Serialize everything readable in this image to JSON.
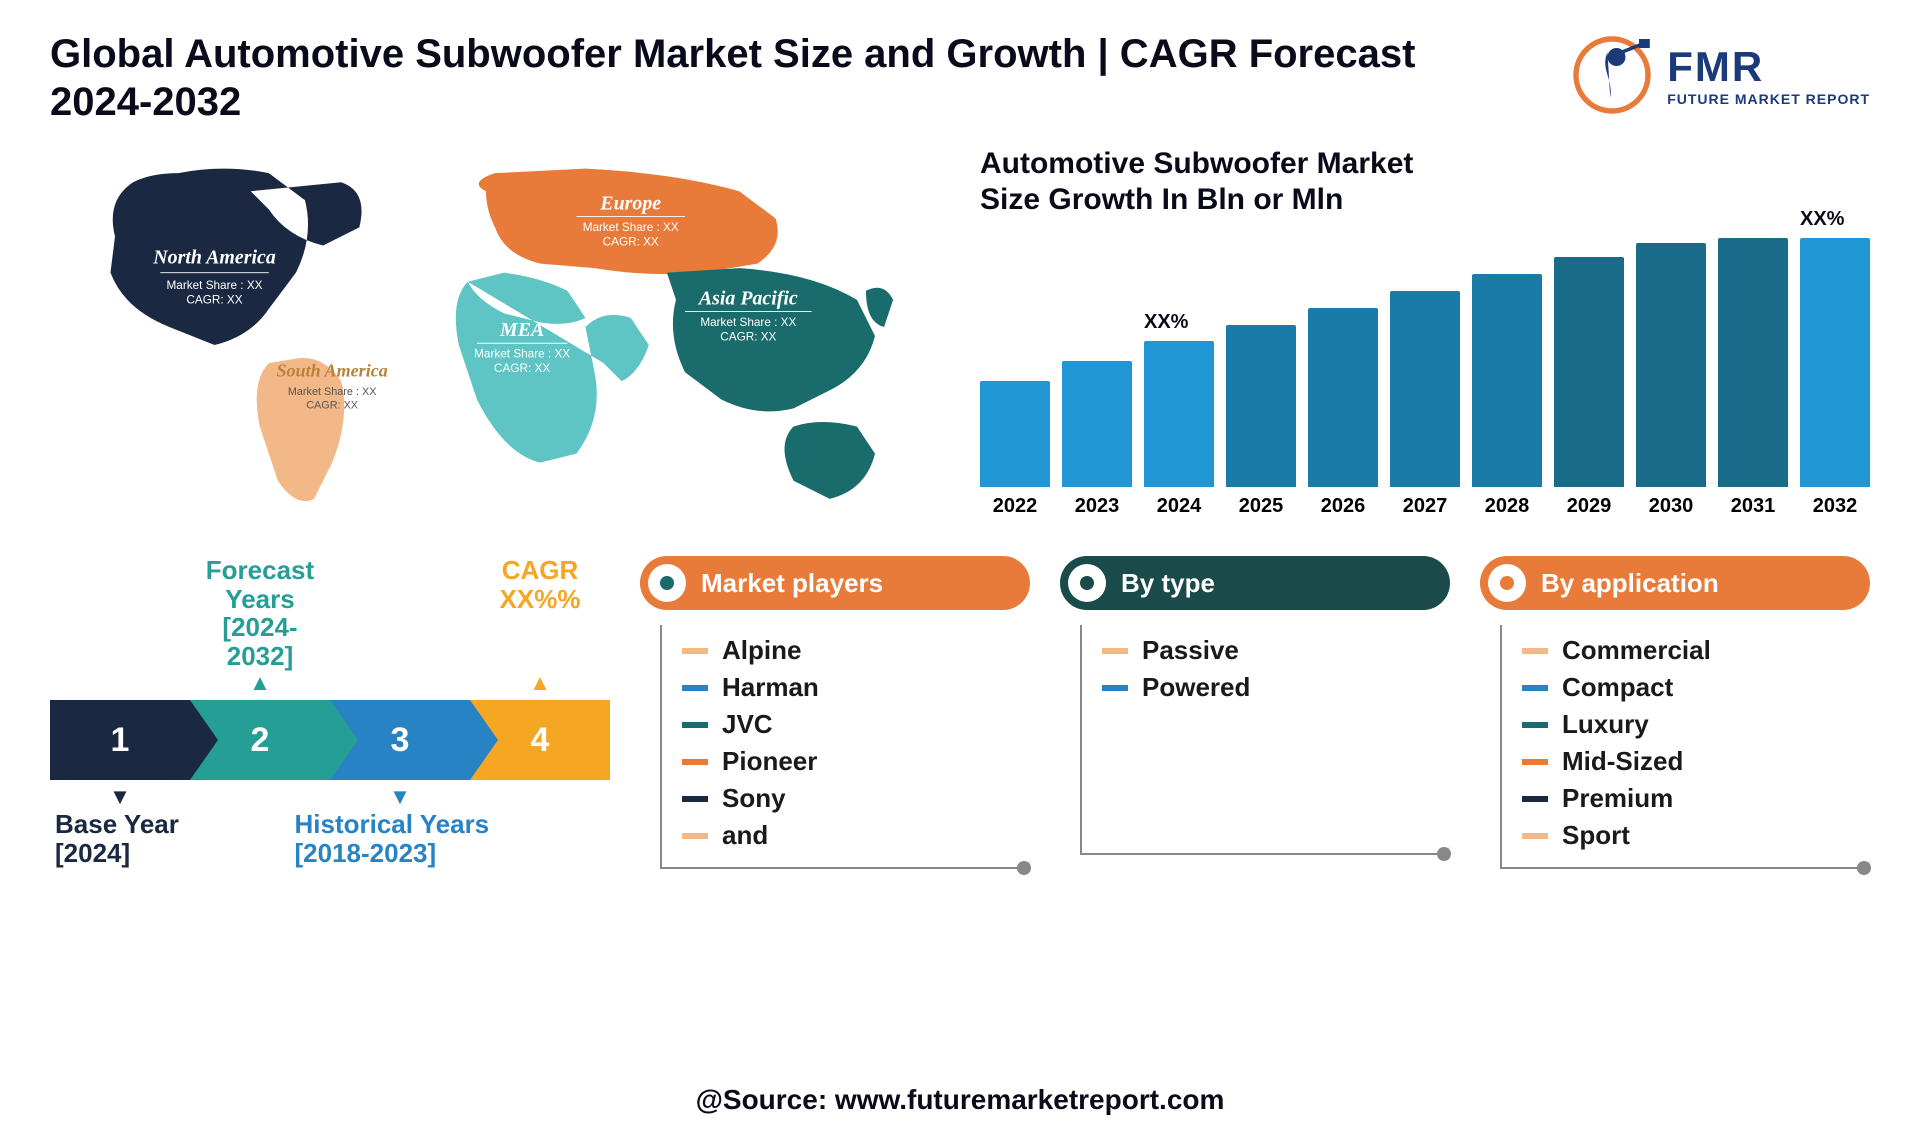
{
  "title": "Global Automotive Subwoofer  Market Size and Growth | CAGR Forecast 2024-2032",
  "logo": {
    "fmr": "FMR",
    "sub": "FUTURE MARKET REPORT"
  },
  "map": {
    "regions": [
      {
        "name": "North America",
        "share": "Market Share : XX",
        "cagr": "CAGR: XX",
        "color": "#1a2842"
      },
      {
        "name": "South America",
        "share": "Market Share : XX",
        "cagr": "CAGR: XX",
        "color": "#f2b888"
      },
      {
        "name": "Europe",
        "share": "Market Share : XX",
        "cagr": "CAGR: XX",
        "color": "#e87b3a"
      },
      {
        "name": "MEA",
        "share": "Market Share : XX",
        "cagr": "CAGR: XX",
        "color": "#5ec4c4"
      },
      {
        "name": "Asia Pacific",
        "share": "Market Share : XX",
        "cagr": "CAGR: XX",
        "color": "#1a6b6b"
      }
    ]
  },
  "chart": {
    "title": "Automotive Subwoofer Market Size Growth In Bln or Mln",
    "years": [
      "2022",
      "2023",
      "2024",
      "2025",
      "2026",
      "2027",
      "2028",
      "2029",
      "2030",
      "2031",
      "2032"
    ],
    "values": [
      38,
      45,
      52,
      58,
      64,
      70,
      76,
      82,
      87,
      92,
      98
    ],
    "colors": [
      "#2196d4",
      "#2196d4",
      "#2196d4",
      "#1a7aa8",
      "#1a7aa8",
      "#1a7aa8",
      "#1a7aa8",
      "#1a6b8a",
      "#1a6b8a",
      "#1a6b8a",
      "#2196d4"
    ],
    "annotations": [
      {
        "index": 2,
        "text": "XX%"
      },
      {
        "index": 10,
        "text": "XX%"
      }
    ],
    "ylim": [
      0,
      100
    ],
    "label_fontsize": 20,
    "bar_gap": 12
  },
  "timeline": {
    "forecast_label": "Forecast Years",
    "forecast_range": "[2024-2032]",
    "cagr_label": "CAGR",
    "cagr_value": "XX%%",
    "segments": [
      "1",
      "2",
      "3",
      "4"
    ],
    "seg_colors": [
      "#1a2842",
      "#259e96",
      "#2783c4",
      "#f5a623"
    ],
    "base_label": "Base Year",
    "base_range": "[2024]",
    "hist_label": "Historical Years",
    "hist_range": "[2018-2023]"
  },
  "categories": [
    {
      "title": "Market players",
      "header_color": "#e87b3a",
      "bullet_color": "#1a6b6b",
      "items": [
        {
          "label": "Alpine",
          "color": "#f2b888"
        },
        {
          "label": "Harman",
          "color": "#2783c4"
        },
        {
          "label": "JVC",
          "color": "#1a6b6b"
        },
        {
          "label": "Pioneer",
          "color": "#e87b3a"
        },
        {
          "label": "Sony",
          "color": "#1a2842"
        },
        {
          "label": "and",
          "color": "#f2b888"
        }
      ]
    },
    {
      "title": "By type",
      "header_color": "#1a4a4a",
      "bullet_color": "#1a4a4a",
      "items": [
        {
          "label": "Passive",
          "color": "#f2b888"
        },
        {
          "label": "Powered",
          "color": "#2783c4"
        }
      ]
    },
    {
      "title": "By application",
      "header_color": "#e87b3a",
      "bullet_color": "#e87b3a",
      "items": [
        {
          "label": "Commercial",
          "color": "#f2b888"
        },
        {
          "label": "Compact",
          "color": "#2783c4"
        },
        {
          "label": "Luxury",
          "color": "#1a6b6b"
        },
        {
          "label": "Mid-Sized",
          "color": "#e87b3a"
        },
        {
          "label": "Premium",
          "color": "#1a2842"
        },
        {
          "label": "Sport",
          "color": "#f2b888"
        }
      ]
    }
  ],
  "source": "@Source: www.futuremarketreport.com"
}
